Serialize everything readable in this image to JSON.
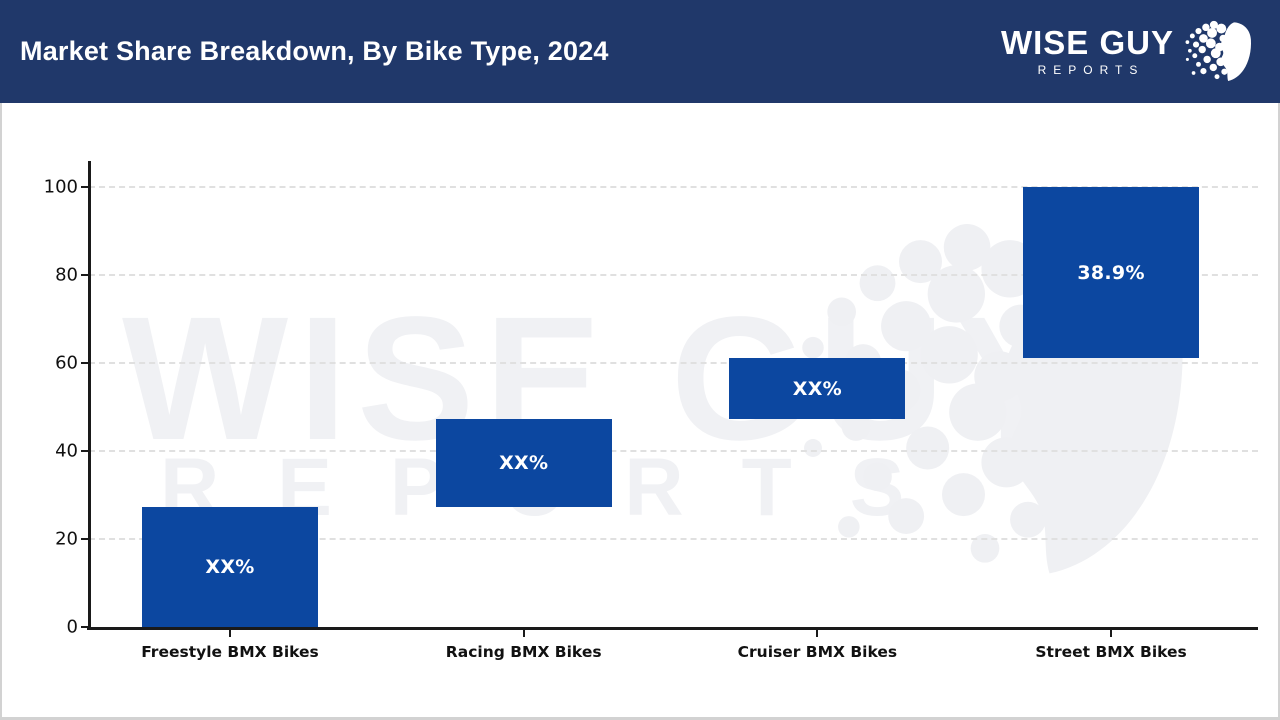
{
  "header": {
    "title": "Market Share Breakdown, By Bike Type, 2024",
    "logo": {
      "name": "WISE GUY",
      "sub": "REPORTS"
    }
  },
  "watermark": {
    "line1": "WISE GUY",
    "line2": "REPORTS"
  },
  "colors": {
    "header_bg": "#20386a",
    "bar": "#0c47a0",
    "gridline": "#e0e0e0",
    "axis": "#1a1a1a",
    "bar_label": "#ffffff",
    "watermark": "#f0f1f4"
  },
  "chart_data": {
    "type": "bar",
    "subtype": "waterfall",
    "title": "Market Share Breakdown, By Bike Type, 2024",
    "categories": [
      "Freestyle BMX Bikes",
      "Racing BMX Bikes",
      "Cruiser BMX Bikes",
      "Street BMX Bikes"
    ],
    "bars": [
      {
        "category": "Freestyle BMX Bikes",
        "label": "XX%",
        "start": 0,
        "end": 27.2
      },
      {
        "category": "Racing BMX Bikes",
        "label": "XX%",
        "start": 27.2,
        "end": 47.2
      },
      {
        "category": "Cruiser BMX Bikes",
        "label": "XX%",
        "start": 47.2,
        "end": 61.1
      },
      {
        "category": "Street BMX Bikes",
        "label": "38.9%",
        "start": 61.1,
        "end": 100
      }
    ],
    "yticks": [
      0,
      20,
      40,
      60,
      80,
      100
    ],
    "ylim": [
      0,
      106
    ],
    "xlabel": "",
    "ylabel": "",
    "grid": "dashed-horizontal",
    "legend": "none"
  }
}
